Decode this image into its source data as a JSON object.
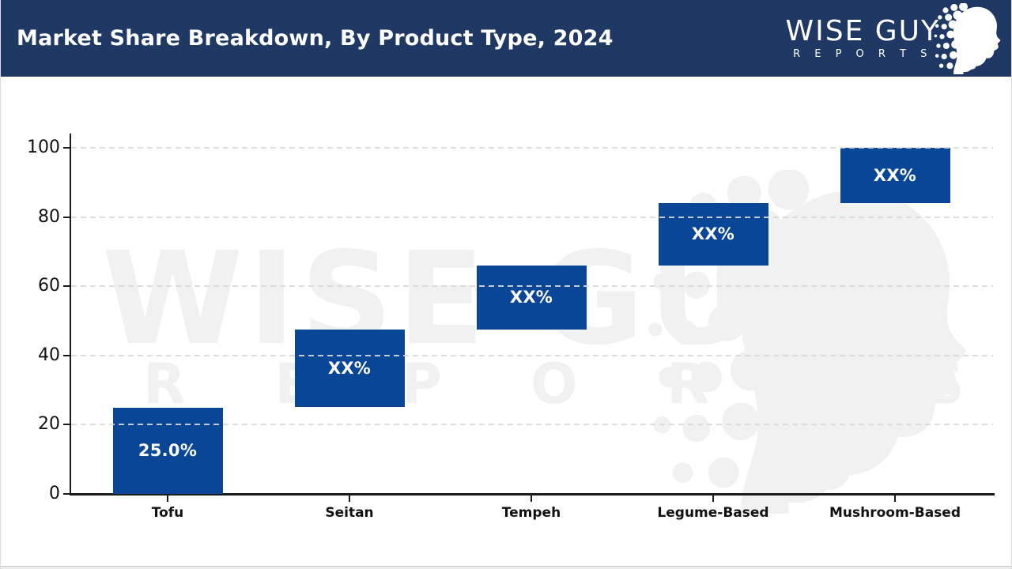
{
  "header": {
    "title": "Market Share Breakdown, By Product Type, 2024",
    "logo": {
      "primary": "WISE GUY",
      "secondary": "R E P O R T S",
      "icon": "dotted-face-profile"
    }
  },
  "watermark": {
    "primary": "WISE GUY",
    "secondary": "R E P O R T S",
    "icon": "dotted-face-profile"
  },
  "colors": {
    "header_bg": "#1f3864",
    "bar": "#0a4696",
    "bar_label": "#ffffff",
    "grid": "#d9d9d9",
    "axis": "#1a1a1a",
    "watermark": "#f1f1f1",
    "title_text": "#ffffff"
  },
  "chart_data": {
    "type": "bar",
    "subtype": "waterfall",
    "title": "Market Share Breakdown, By Product Type, 2024",
    "categories": [
      "Tofu",
      "Seitan",
      "Tempeh",
      "Legume-Based",
      "Mushroom-Based"
    ],
    "segments": [
      {
        "category": "Tofu",
        "start": 0,
        "end": 25,
        "label": "25.0%"
      },
      {
        "category": "Seitan",
        "start": 25,
        "end": 47.5,
        "label": "XX%"
      },
      {
        "category": "Tempeh",
        "start": 47.5,
        "end": 66,
        "label": "XX%"
      },
      {
        "category": "Legume-Based",
        "start": 66,
        "end": 84,
        "label": "XX%"
      },
      {
        "category": "Mushroom-Based",
        "start": 84,
        "end": 100,
        "label": "XX%"
      }
    ],
    "yticks": [
      0,
      20,
      40,
      60,
      80,
      100
    ],
    "ylim": [
      0,
      104
    ],
    "xlabel": "",
    "ylabel": "",
    "grid": "horizontal-dashed",
    "grid_over_bars": true,
    "legend": "none"
  }
}
